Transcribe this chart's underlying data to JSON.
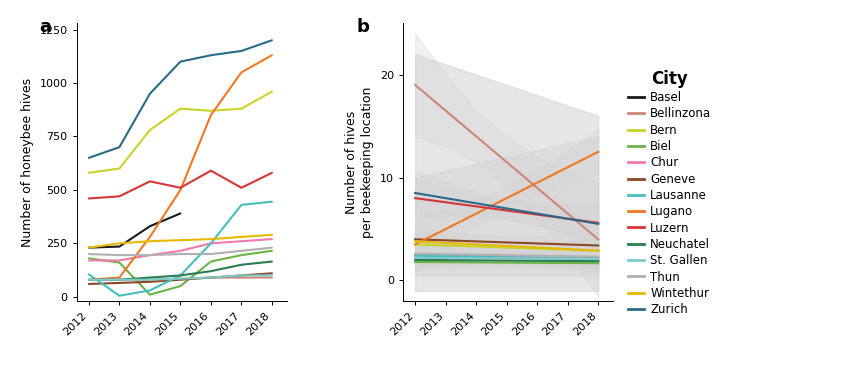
{
  "years": [
    2012,
    2013,
    2014,
    2015,
    2016,
    2017,
    2018
  ],
  "cities": [
    "Basel",
    "Bellinzona",
    "Bern",
    "Biel",
    "Chur",
    "Geneve",
    "Lausanne",
    "Lugano",
    "Luzern",
    "Neuchatel",
    "St. Gallen",
    "Thun",
    "Wintethur",
    "Zurich"
  ],
  "colors": {
    "Basel": "#1a1a1a",
    "Bellinzona": "#cc8877",
    "Bern": "#c8d42a",
    "Biel": "#6ab545",
    "Chur": "#f07aaa",
    "Geneve": "#8b4726",
    "Lausanne": "#45bfbe",
    "Lugano": "#f07820",
    "Luzern": "#d63535",
    "Neuchatel": "#2a7d50",
    "St. Gallen": "#7ecbcc",
    "Thun": "#b0b0b0",
    "Wintethur": "#e6b800",
    "Zurich": "#2b6b8a"
  },
  "hives_a": {
    "Basel": [
      230,
      235,
      330,
      390,
      null,
      null,
      null
    ],
    "Bellinzona": [
      80,
      80,
      80,
      85,
      90,
      90,
      90
    ],
    "Bern": [
      580,
      600,
      780,
      880,
      870,
      880,
      960
    ],
    "Biel": [
      180,
      160,
      10,
      50,
      165,
      195,
      215
    ],
    "Chur": [
      170,
      170,
      195,
      215,
      250,
      260,
      270
    ],
    "Geneve": [
      60,
      65,
      70,
      80,
      90,
      100,
      110
    ],
    "Lausanne": [
      105,
      5,
      30,
      100,
      250,
      430,
      445
    ],
    "Lugano": [
      80,
      90,
      280,
      500,
      850,
      1050,
      1130
    ],
    "Luzern": [
      460,
      470,
      540,
      510,
      590,
      510,
      580
    ],
    "Neuchatel": [
      80,
      80,
      90,
      100,
      120,
      150,
      165
    ],
    "St. Gallen": [
      80,
      80,
      80,
      85,
      90,
      100,
      100
    ],
    "Thun": [
      200,
      195,
      195,
      200,
      200,
      215,
      230
    ],
    "Wintethur": [
      230,
      250,
      260,
      265,
      270,
      280,
      290
    ],
    "Zurich": [
      650,
      700,
      950,
      1100,
      1130,
      1150,
      1200
    ]
  },
  "hives_b": {
    "Basel": [
      null,
      null,
      null,
      null,
      null,
      null,
      null
    ],
    "Bellinzona": [
      19.0,
      16.5,
      14.0,
      11.5,
      9.0,
      6.5,
      4.0
    ],
    "Bern": [
      3.5,
      3.4,
      3.3,
      3.2,
      3.1,
      3.0,
      2.9
    ],
    "Biel": [
      1.8,
      1.78,
      1.76,
      1.74,
      1.72,
      1.7,
      1.68
    ],
    "Chur": [
      2.5,
      2.42,
      2.34,
      2.26,
      2.18,
      2.1,
      2.02
    ],
    "Geneve": [
      4.0,
      3.9,
      3.8,
      3.7,
      3.6,
      3.5,
      3.4
    ],
    "Lausanne": [
      2.4,
      2.38,
      2.36,
      2.34,
      2.32,
      2.3,
      2.28
    ],
    "Lugano": [
      3.5,
      5.0,
      6.5,
      8.0,
      9.5,
      11.0,
      12.5
    ],
    "Luzern": [
      8.0,
      7.6,
      7.2,
      6.8,
      6.4,
      6.0,
      5.6
    ],
    "Neuchatel": [
      2.0,
      1.98,
      1.96,
      1.94,
      1.92,
      1.9,
      1.88
    ],
    "St. Gallen": [
      2.2,
      2.18,
      2.16,
      2.14,
      2.12,
      2.1,
      2.08
    ],
    "Thun": [
      2.6,
      2.55,
      2.5,
      2.45,
      2.4,
      2.35,
      2.3
    ],
    "Wintethur": [
      3.8,
      3.65,
      3.5,
      3.35,
      3.2,
      3.05,
      2.9
    ],
    "Zurich": [
      8.5,
      8.0,
      7.5,
      7.0,
      6.5,
      6.0,
      5.5
    ]
  },
  "hives_b_ci": {
    "Basel": [
      null,
      null,
      null,
      null,
      null,
      null,
      null
    ],
    "Bellinzona": [
      5.0,
      3.5,
      2.5,
      2.5,
      3.0,
      4.0,
      5.5
    ],
    "Bern": [
      1.0,
      0.7,
      0.5,
      0.5,
      0.6,
      0.8,
      1.1
    ],
    "Biel": [
      0.8,
      0.6,
      0.4,
      0.4,
      0.5,
      0.6,
      0.8
    ],
    "Chur": [
      0.9,
      0.65,
      0.5,
      0.45,
      0.55,
      0.7,
      0.9
    ],
    "Geneve": [
      1.2,
      0.9,
      0.65,
      0.6,
      0.7,
      0.9,
      1.2
    ],
    "Lausanne": [
      0.8,
      0.6,
      0.45,
      0.4,
      0.5,
      0.65,
      0.85
    ],
    "Lugano": [
      2.5,
      1.8,
      1.2,
      1.0,
      1.2,
      1.6,
      2.2
    ],
    "Luzern": [
      2.0,
      1.4,
      1.0,
      0.9,
      1.0,
      1.4,
      1.9
    ],
    "Neuchatel": [
      0.7,
      0.5,
      0.35,
      0.32,
      0.4,
      0.55,
      0.75
    ],
    "St. Gallen": [
      0.75,
      0.55,
      0.4,
      0.35,
      0.45,
      0.58,
      0.78
    ],
    "Thun": [
      0.85,
      0.62,
      0.45,
      0.4,
      0.5,
      0.65,
      0.88
    ],
    "Wintethur": [
      1.0,
      0.72,
      0.52,
      0.47,
      0.57,
      0.74,
      1.0
    ],
    "Zurich": [
      2.2,
      1.6,
      1.1,
      1.0,
      1.1,
      1.5,
      2.0
    ]
  },
  "overall_ci_2012": [
    [
      -2,
      22
    ]
  ],
  "overall_ci_2018": [
    [
      -1,
      16
    ]
  ],
  "background_color": "#ffffff",
  "figsize": [
    8.52,
    3.86
  ],
  "dpi": 100
}
